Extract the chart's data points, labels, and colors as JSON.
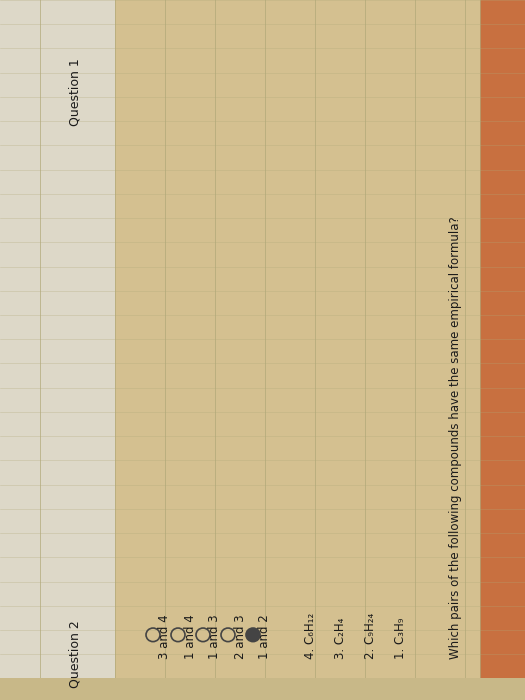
{
  "header": "Question 1",
  "question": "Which pairs of the following compounds have the same empirical formula?",
  "compounds": [
    "1. C₃H₉",
    "2. C₉H₂₄",
    "3. C₂H₄",
    "4. C₆H₁₂"
  ],
  "options": [
    "1 and 2",
    "2 and 3",
    "1 and 3",
    "1 and 4",
    "3 and 4"
  ],
  "next_label": "Question 2",
  "bg_color_body": "#c8b888",
  "bg_color_right_edge": "#c07040",
  "bg_color_content": "#d8c898",
  "bg_color_left_strip": "#b8a870",
  "bg_color_white_col": "#e8e0d0",
  "line_color": "#a09060",
  "text_color": "#1a1a1a",
  "selected_option_index": 0,
  "circle_color": "#444444",
  "grid_color": "#b0a878"
}
